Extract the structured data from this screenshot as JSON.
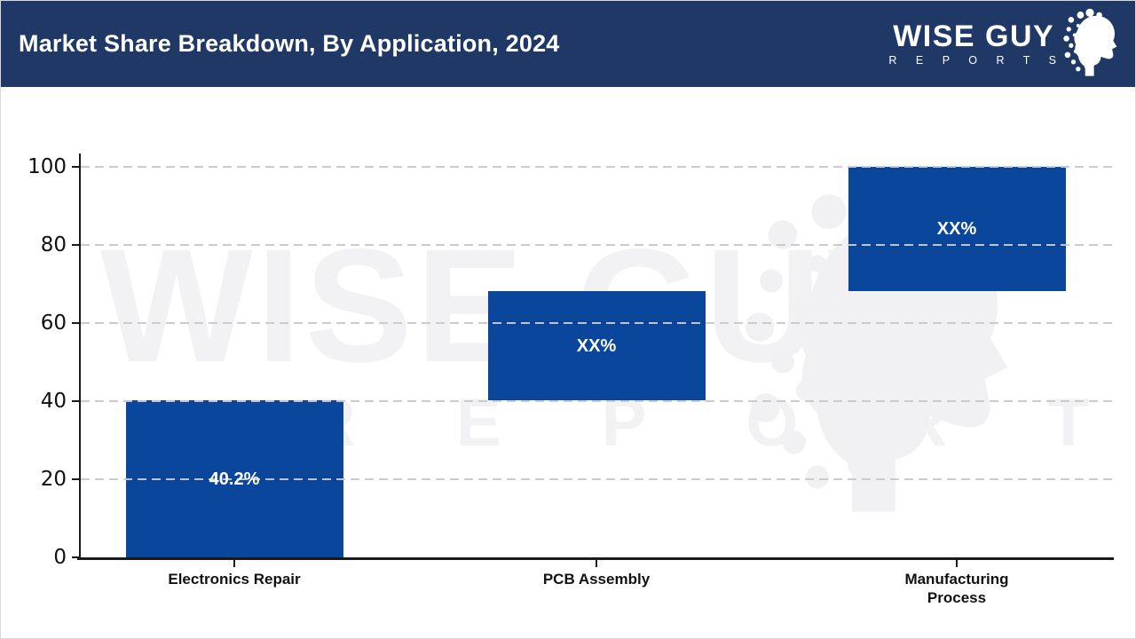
{
  "header": {
    "title": "Market Share Breakdown, By Application, 2024",
    "bg_color": "#1f3865",
    "logo": {
      "line1": "WISE GUY",
      "line2": "R E P O R T S"
    }
  },
  "watermark": {
    "line1": "WISE GUY",
    "line2": "R E P O R T S"
  },
  "chart_data": {
    "type": "bar",
    "subtype": "waterfall",
    "title": "Market Share Breakdown, By Application, 2024",
    "categories": [
      "Electronics Repair",
      "PCB Assembly",
      "Manufacturing Process"
    ],
    "tick_labels": [
      "Electronics Repair",
      "PCB Assembly",
      "Manufacturing\nProcess"
    ],
    "segments": [
      {
        "category": "Electronics Repair",
        "start": 0,
        "end": 40.2,
        "label": "40.2%"
      },
      {
        "category": "PCB Assembly",
        "start": 40.2,
        "end": 68.2,
        "label": "XX%"
      },
      {
        "category": "Manufacturing Process",
        "start": 68.2,
        "end": 100,
        "label": "XX%"
      }
    ],
    "bar_color": "#0a469c",
    "grid": "dashed-horizontal",
    "grid_color": "#c9c9c9",
    "ylim": [
      0,
      100
    ],
    "yticks": [
      0,
      20,
      40,
      60,
      80,
      100
    ],
    "xlabel": "",
    "ylabel": "",
    "legend": "none"
  }
}
